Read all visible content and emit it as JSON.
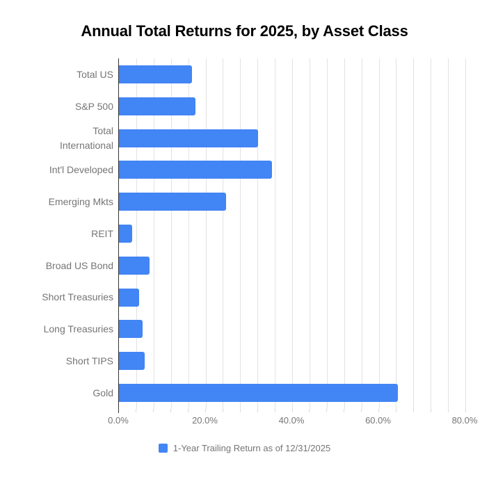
{
  "title": "Annual Total Returns for 2025, by Asset Class",
  "legend": {
    "label": "1-Year Trailing Return as of 12/31/2025",
    "swatch_color": "#4285F4"
  },
  "chart_data": {
    "type": "bar",
    "orientation": "horizontal",
    "title": "Annual Total Returns for 2025, by Asset Class",
    "categories": [
      "Total US",
      "S&P 500",
      "Total\nInternational",
      "Int'l Developed",
      "Emerging Mkts",
      "REIT",
      "Broad US Bond",
      "Short Treasuries",
      "Long Treasuries",
      "Short TIPS",
      "Gold"
    ],
    "values": [
      16.9,
      17.7,
      32.1,
      35.4,
      24.7,
      3.0,
      7.0,
      4.7,
      5.5,
      5.9,
      64.4
    ],
    "unit": "%",
    "series_name": "1-Year Trailing Return as of 12/31/2025",
    "xlabel": "",
    "ylabel": "",
    "xlim": [
      0,
      80
    ],
    "x_tick_values": [
      0,
      20,
      40,
      60,
      80
    ],
    "x_tick_labels": [
      "0.0%",
      "20.0%",
      "40.0%",
      "60.0%",
      "80.0%"
    ],
    "minor_gridline_step": 4,
    "grid": true,
    "legend_position": "bottom",
    "bar_color": "#4285F4"
  },
  "colors": {
    "bar": "#4285F4",
    "gridline": "#e2e2e2",
    "axis_line": "#333333",
    "label_text": "#757575",
    "title_text": "#000000",
    "background": "#ffffff"
  }
}
